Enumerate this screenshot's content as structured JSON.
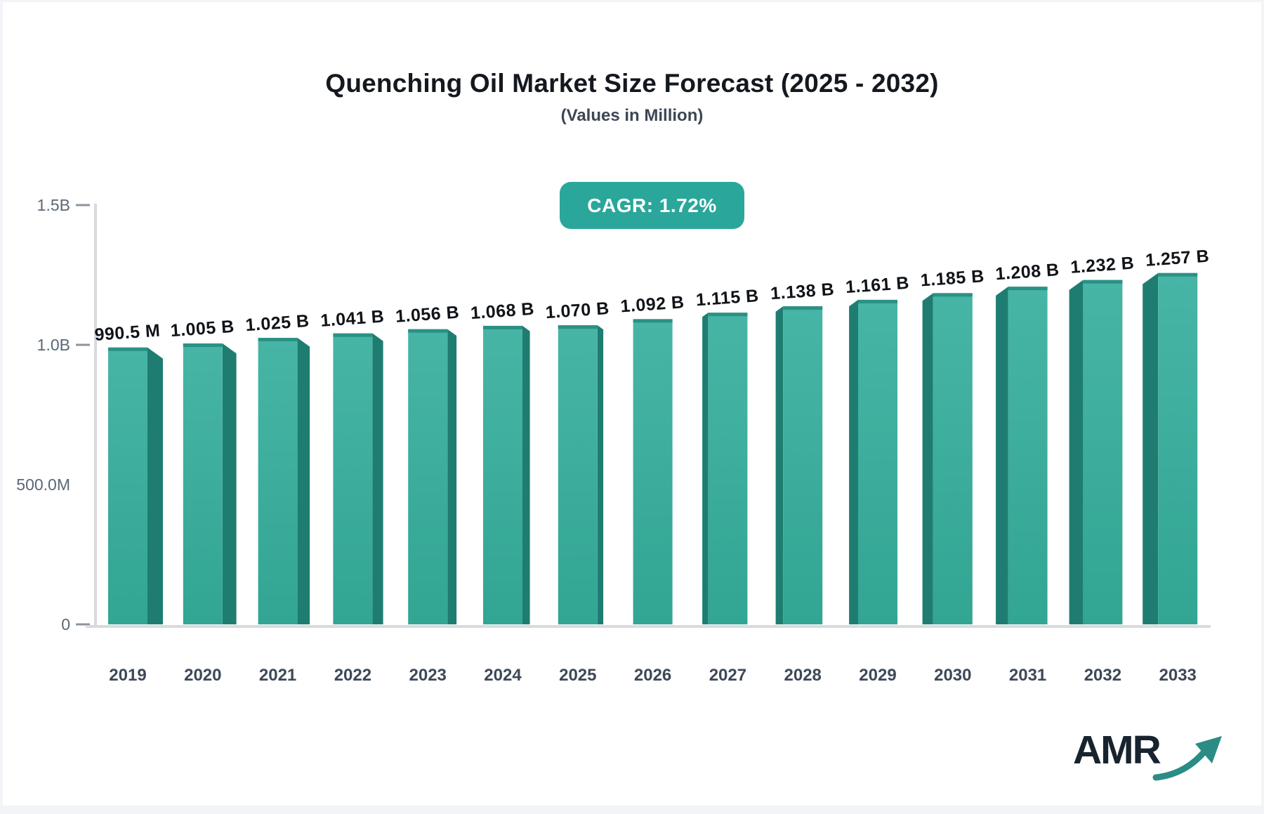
{
  "header": {
    "title": "Quenching Oil Market Size Forecast (2025 - 2032)",
    "subtitle": "(Values in Million)",
    "cagr_badge": "CAGR: 1.72%"
  },
  "chart_data": {
    "type": "bar",
    "title": "Quenching Oil Market Size Forecast (2025 - 2032)",
    "subtitle": "(Values in Million)",
    "annotation": "CAGR: 1.72%",
    "categories": [
      "2019",
      "2020",
      "2021",
      "2022",
      "2023",
      "2024",
      "2025",
      "2026",
      "2027",
      "2028",
      "2029",
      "2030",
      "2031",
      "2032",
      "2033"
    ],
    "values_billions": [
      0.9905,
      1.005,
      1.025,
      1.041,
      1.056,
      1.068,
      1.07,
      1.092,
      1.115,
      1.138,
      1.161,
      1.185,
      1.208,
      1.232,
      1.257
    ],
    "value_labels": [
      "990.5 M",
      "1.005 B",
      "1.025 B",
      "1.041 B",
      "1.056 B",
      "1.068 B",
      "1.070 B",
      "1.092 B",
      "1.115 B",
      "1.138 B",
      "1.161 B",
      "1.185 B",
      "1.208 B",
      "1.232 B",
      "1.257 B"
    ],
    "xlabel": "",
    "ylabel": "",
    "ylim_billions": [
      0,
      1.5
    ],
    "grid": false,
    "legend": null,
    "y_axis_ticks": [
      {
        "label": "1.5B",
        "value": 1.5,
        "dash": true
      },
      {
        "label": "1.0B",
        "value": 1.0,
        "dash": true
      },
      {
        "label": "500.0M",
        "value": 0.5,
        "dash": false
      },
      {
        "label": "0",
        "value": 0.0,
        "dash": true
      }
    ],
    "colors": {
      "bar_face_top": "#47b5a6",
      "bar_face_bottom": "#32a593",
      "bar_side": "#1e7d70",
      "bar_top_edge": "#2a9184",
      "axis_line": "#d8dade",
      "tick_dash": "#8d949c",
      "tick_label": "#5a6876",
      "category_label": "#3d4858",
      "value_label": "#101418",
      "badge_bg": "#2aa79a",
      "badge_text": "#ffffff",
      "logo_text": "#17242f",
      "logo_arrow": "#2b8c85"
    }
  },
  "footer": {
    "logo_text": "AMR",
    "logo_icon": "trend-up-arrow-icon"
  }
}
